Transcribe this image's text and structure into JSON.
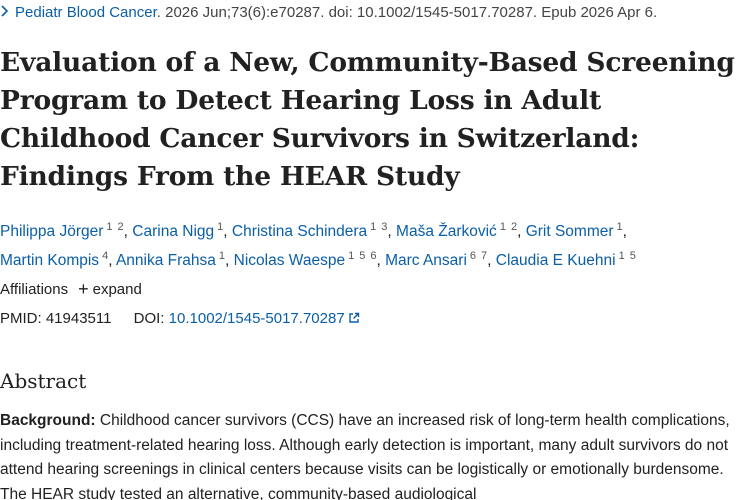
{
  "citation": {
    "journal": "Pediatr Blood Cancer",
    "details": ". 2026 Jun;73(6):e70287. doi: 10.1002/1545-5017.70287. Epub 2026 Apr 6."
  },
  "article": {
    "title": "Evaluation of a New, Community‐Based Screening Program to Detect Hearing Loss in Adult Childhood Cancer Survivors in Switzerland: Findings From the HEAR Study"
  },
  "authors": [
    {
      "name": "Philippa Jörger",
      "affils": [
        "1",
        "2"
      ]
    },
    {
      "name": "Carina Nigg",
      "affils": [
        "1"
      ]
    },
    {
      "name": "Christina Schindera",
      "affils": [
        "1",
        "3"
      ]
    },
    {
      "name": "Maša Žarković",
      "affils": [
        "1",
        "2"
      ]
    },
    {
      "name": "Grit Sommer",
      "affils": [
        "1"
      ]
    },
    {
      "name": "Martin Kompis",
      "affils": [
        "4"
      ]
    },
    {
      "name": "Annika Frahsa",
      "affils": [
        "1"
      ]
    },
    {
      "name": "Nicolas Waespe",
      "affils": [
        "1",
        "5",
        "6"
      ]
    },
    {
      "name": "Marc Ansari",
      "affils": [
        "6",
        "7"
      ]
    },
    {
      "name": "Claudia E Kuehni",
      "affils": [
        "1",
        "5"
      ]
    }
  ],
  "affiliations": {
    "label": "Affiliations",
    "expand_label": "expand"
  },
  "identifiers": {
    "pmid_label": "PMID:",
    "pmid": "41943511",
    "doi_label": "DOI:",
    "doi": "10.1002/1545-5017.70287"
  },
  "abstract": {
    "heading": "Abstract",
    "background_label": "Background:",
    "background_text": " Childhood cancer survivors (CCS) have an increased risk of long-term health complications, including treatment-related hearing loss. Although early detection is important, many adult survivors do not attend hearing screenings in clinical centers because visits can be logistically or emotionally burdensome. The HEAR study tested an alternative, community-based audiological"
  },
  "colors": {
    "link": "#0b5ea8",
    "text": "#212121"
  }
}
